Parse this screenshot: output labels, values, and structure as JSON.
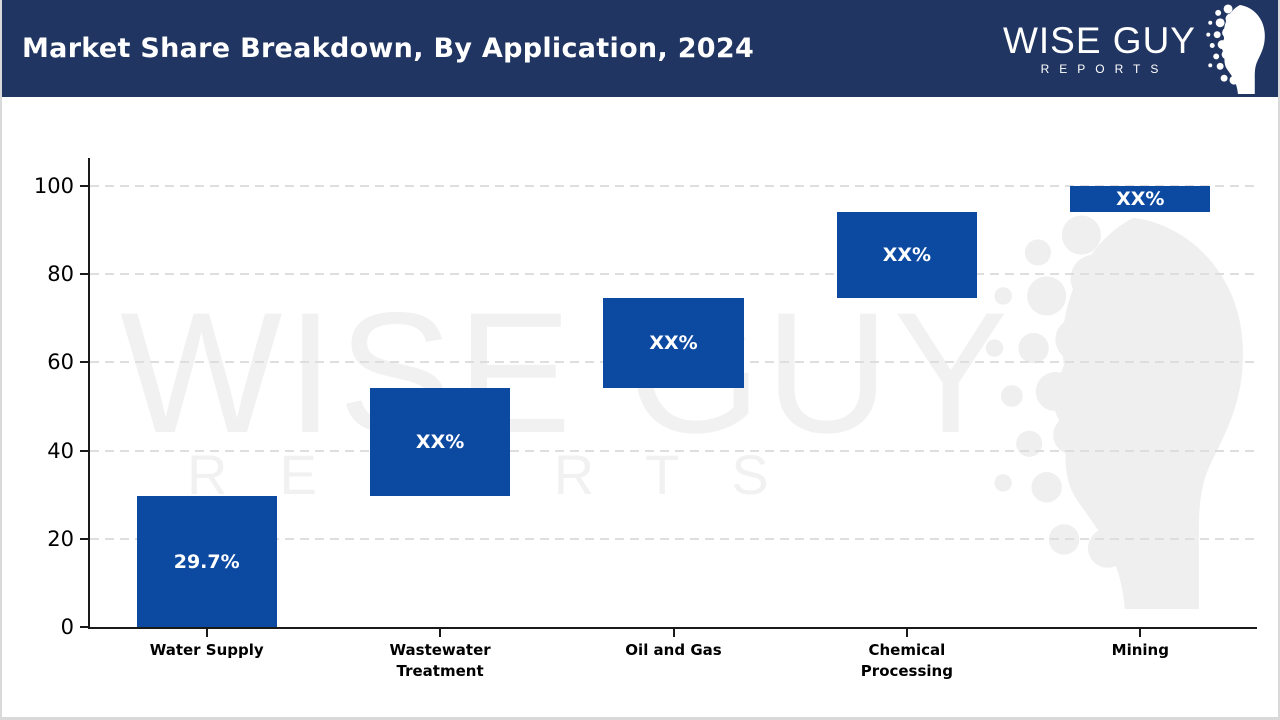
{
  "header": {
    "title": "Market Share Breakdown, By Application, 2024",
    "bg_color": "#203562",
    "logo": {
      "wordmark": "WISE GUY",
      "subtext": "REPORTS"
    }
  },
  "watermark": {
    "wordmark": "WISE GUY",
    "subtext": "REPORTS"
  },
  "chart_data": {
    "type": "bar",
    "subtype": "waterfall",
    "title": "Market Share Breakdown, By Application, 2024",
    "xlabel": "",
    "ylabel": "",
    "ylim": [
      0,
      100
    ],
    "yticks": [
      0,
      20,
      40,
      60,
      80,
      100
    ],
    "grid": "horizontal-dashed",
    "legend": "none",
    "bar_color": "#0c4aa1",
    "bar_label_color": "#ffffff",
    "axis_color": "#1a1a1a",
    "grid_color": "#dedede",
    "categories": [
      "Water Supply",
      "Wastewater Treatment",
      "Oil and Gas",
      "Chemical Processing",
      "Mining"
    ],
    "bars": [
      {
        "category": "Water Supply",
        "start": 0,
        "end": 29.7,
        "label": "29.7%",
        "tick_lines": [
          "Water Supply"
        ]
      },
      {
        "category": "Wastewater Treatment",
        "start": 29.7,
        "end": 54.2,
        "label": "XX%",
        "tick_lines": [
          "Wastewater",
          "Treatment"
        ]
      },
      {
        "category": "Oil and Gas",
        "start": 54.2,
        "end": 74.6,
        "label": "XX%",
        "tick_lines": [
          "Oil and Gas"
        ]
      },
      {
        "category": "Chemical Processing",
        "start": 74.6,
        "end": 94.2,
        "label": "XX%",
        "tick_lines": [
          "Chemical",
          "Processing"
        ]
      },
      {
        "category": "Mining",
        "start": 94.2,
        "end": 100,
        "label": "XX%",
        "tick_lines": [
          "Mining"
        ]
      }
    ]
  }
}
